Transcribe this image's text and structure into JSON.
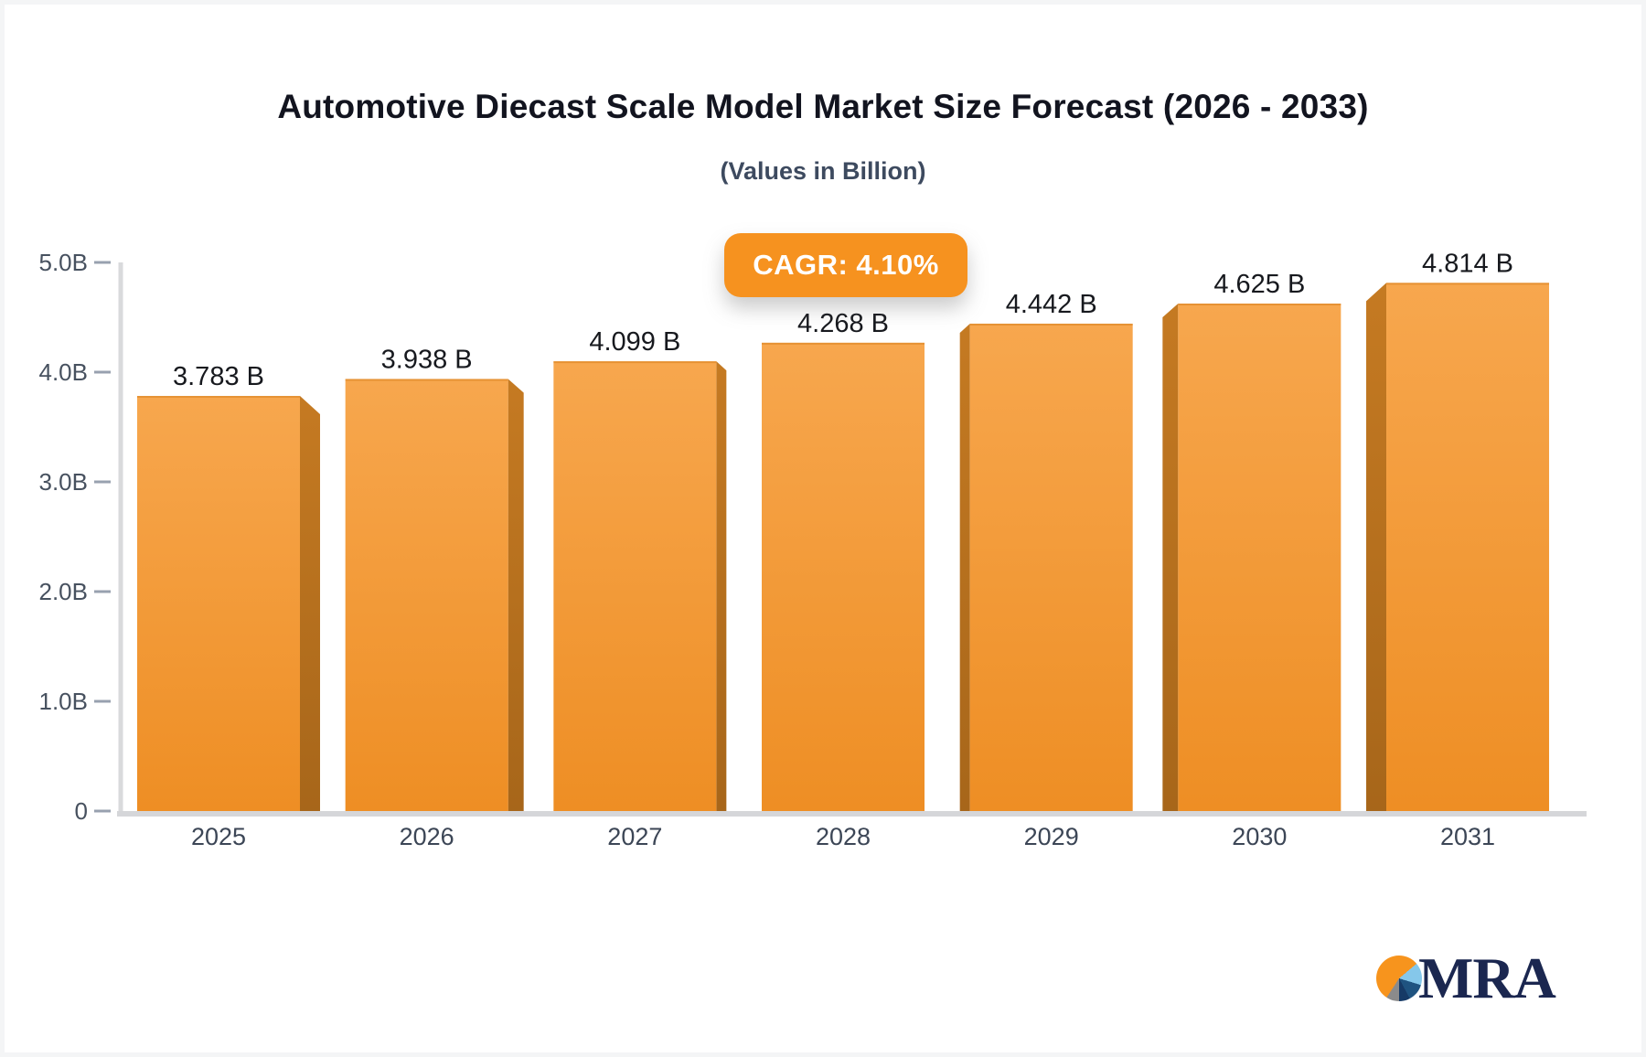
{
  "title": "Automotive Diecast Scale Model Market Size Forecast (2026 - 2033)",
  "subtitle": "(Values in Billion)",
  "badge": {
    "label": "CAGR: 4.10%"
  },
  "logo": {
    "text": "MRA",
    "pie_icon": "pie-chart-icon"
  },
  "colors": {
    "title_color": "#12141f",
    "subtitle_color": "#3d4a5f",
    "badge_bg": "#f6921f",
    "bar_face_top": "#f7a74e",
    "bar_face_bottom": "#ee8e24",
    "bar_top_edge": "#d9821f",
    "bar_side_top": "#c57a22",
    "bar_side_bottom": "#a7661a",
    "axis_line": "#d9dadc",
    "baseline": "#d5d6d9",
    "tick_dash": "#98a1af",
    "tick_label": "#47515f",
    "x_label": "#3c4656",
    "value_label": "#17191e",
    "logo_navy": "#1b2750",
    "pie_orange": "#f7941d",
    "pie_lightblue": "#85c7ea",
    "pie_steelblue": "#1f5380",
    "pie_navy": "#163a66",
    "pie_gray": "#8b8b8b"
  },
  "chart_data": {
    "type": "bar",
    "title": "Automotive Diecast Scale Model Market Size Forecast (2026 - 2033)",
    "subtitle": "(Values in Billion)",
    "cagr": "4.10%",
    "categories": [
      "2025",
      "2026",
      "2027",
      "2028",
      "2029",
      "2030",
      "2031"
    ],
    "values": [
      3.783,
      3.938,
      4.099,
      4.268,
      4.442,
      4.625,
      4.814
    ],
    "value_labels": [
      "3.783 B",
      "3.938 B",
      "4.099 B",
      "4.268 B",
      "4.442 B",
      "4.625 B",
      "4.814 B"
    ],
    "y_tick_labels": [
      "5.0B",
      "4.0B",
      "3.0B",
      "2.0B",
      "1.0B",
      "0"
    ],
    "y_tick_values": [
      5,
      4,
      3,
      2,
      1,
      0
    ],
    "ylim": [
      0,
      5
    ],
    "xlabel": "",
    "ylabel": "",
    "grid": false,
    "legend": false
  }
}
